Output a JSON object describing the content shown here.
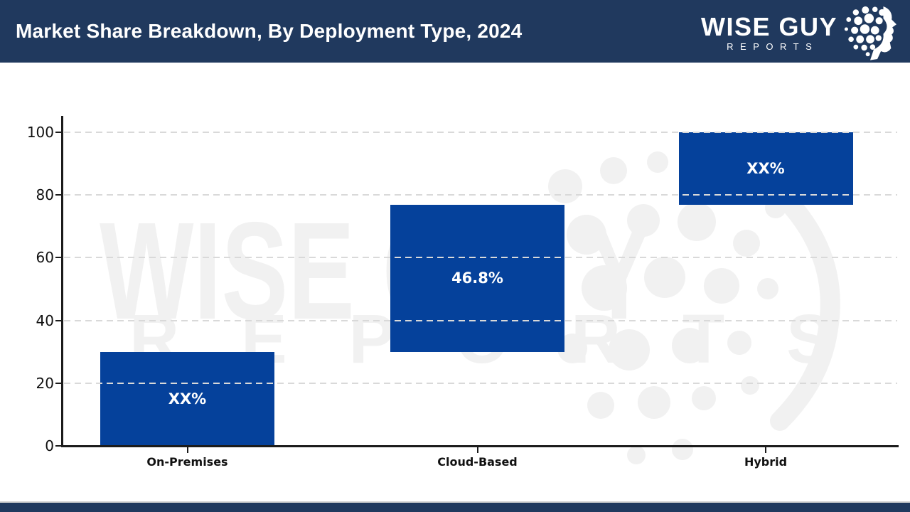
{
  "header": {
    "title": "Market Share Breakdown, By Deployment Type, 2024",
    "background_color": "#20395E",
    "logo": {
      "line1": "WISE GUY",
      "line2": "REPORTS"
    }
  },
  "watermark": {
    "line1": "WISE G U Y",
    "line2": "R E P O R T S"
  },
  "chart_data": {
    "type": "bar",
    "subtype": "floating-waterfall",
    "title": "Market Share Breakdown, By Deployment Type, 2024",
    "categories": [
      "On-Premises",
      "Cloud-Based",
      "Hybrid"
    ],
    "series": [
      {
        "name": "On-Premises",
        "start": 0,
        "end": 30,
        "label": "XX%"
      },
      {
        "name": "Cloud-Based",
        "start": 30,
        "end": 76.8,
        "label": "46.8%"
      },
      {
        "name": "Hybrid",
        "start": 76.8,
        "end": 100,
        "label": "XX%"
      }
    ],
    "yticks": [
      0,
      20,
      40,
      60,
      80,
      100
    ],
    "ylim": [
      0,
      105
    ],
    "xlabel": "",
    "ylabel": "",
    "grid": true,
    "gridline_style": "dashed",
    "legend": "none",
    "bar_color": "#05419B",
    "bar_label_color": "#FFFFFF",
    "axis_color": "#1B1B1B",
    "gridline_color": "#D9D9D9"
  }
}
